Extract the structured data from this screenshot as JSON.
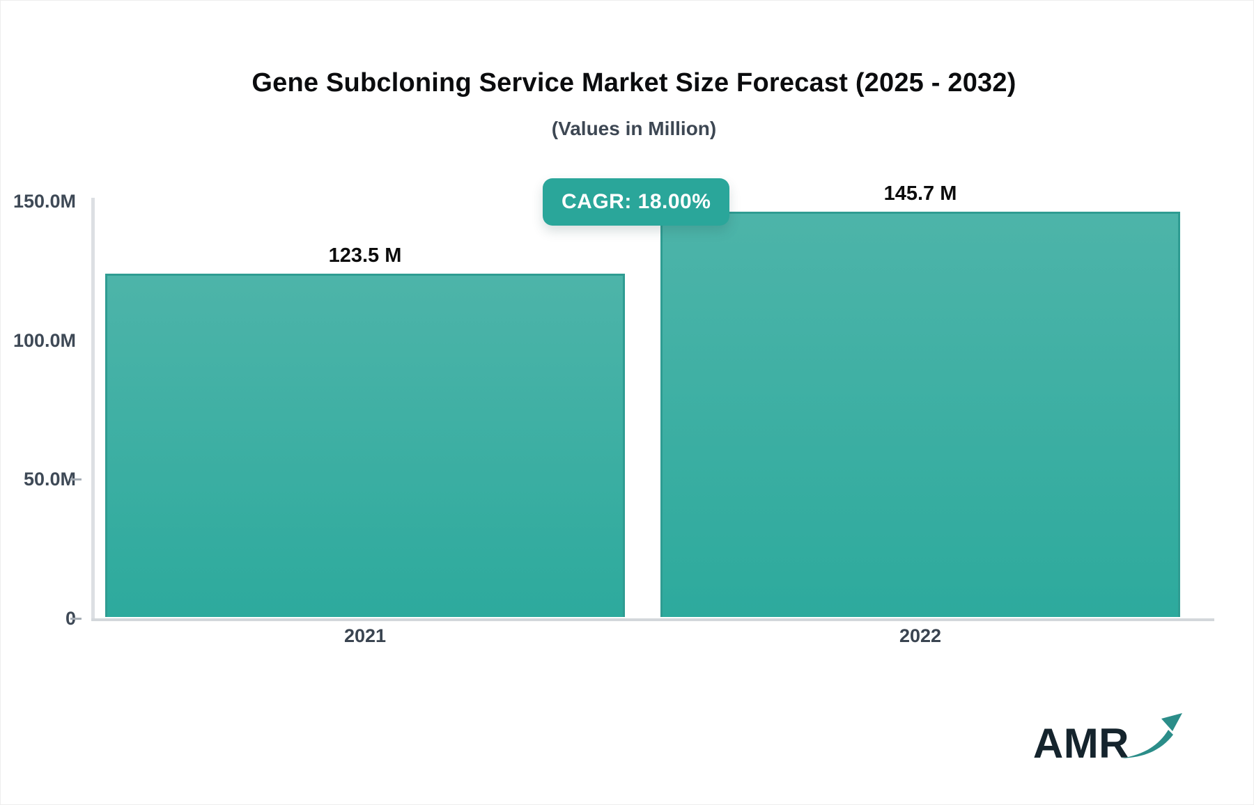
{
  "header": {
    "title": "Gene Subcloning Service Market Size Forecast (2025 - 2032)",
    "subtitle": "(Values in Million)"
  },
  "badge": {
    "label": "CAGR: 18.00%"
  },
  "chart_data": {
    "type": "bar",
    "title": "Gene Subcloning Service Market Size Forecast (2025 - 2032)",
    "subtitle": "(Values in Million)",
    "categories": [
      "2021",
      "2022"
    ],
    "values": [
      123.5,
      145.7
    ],
    "value_labels": [
      "123.5 M",
      "145.7 M"
    ],
    "cagr": "18.00%",
    "ylim": [
      0,
      150
    ],
    "yticks": [
      {
        "value": 0,
        "label": "0"
      },
      {
        "value": 50,
        "label": "50.0M"
      },
      {
        "value": 100,
        "label": "100.0M"
      },
      {
        "value": 150,
        "label": "150.0M"
      }
    ],
    "tick_marks": [
      0,
      50
    ],
    "grid": false,
    "legend": "none",
    "colors": {
      "bar_top": "#4db4a9",
      "bar_bottom": "#2daa9d",
      "bar_border": "#2f9c92",
      "badge_bg": "#2aa69a",
      "badge_text": "#ffffff",
      "axis_line": "#d3d7db",
      "label_text": "#3e4956"
    }
  },
  "logo": {
    "text": "AMR",
    "arrow_icon": "trending-up-arrow",
    "arrow_color": "#2b8d89"
  }
}
